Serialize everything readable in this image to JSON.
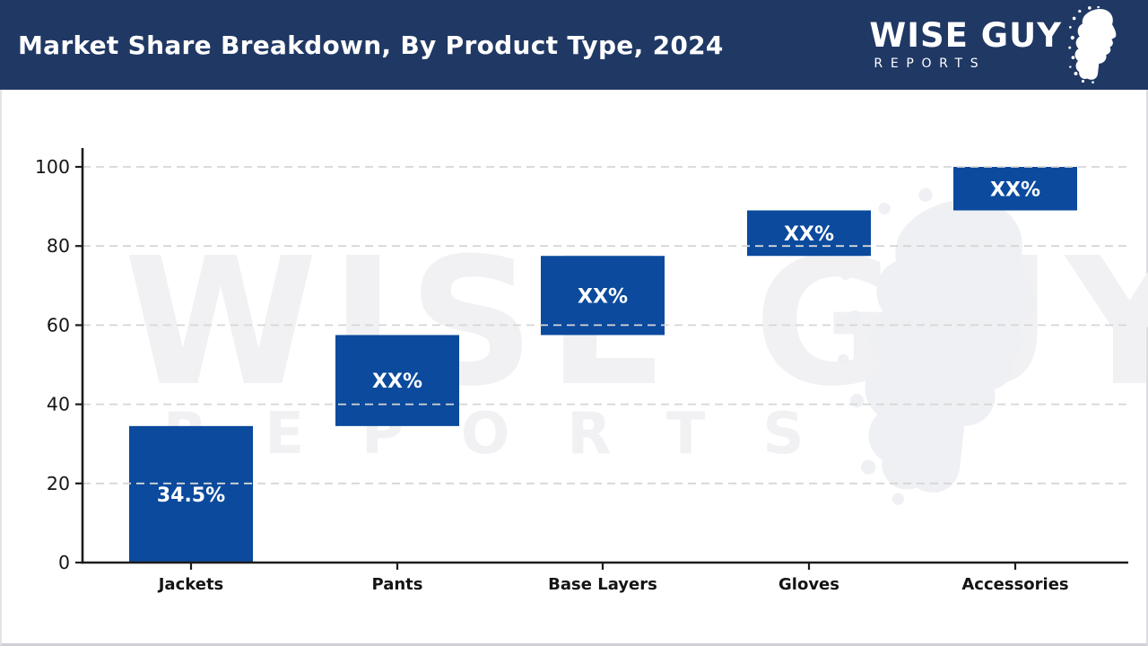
{
  "header": {
    "title": "Market Share Breakdown, By Product Type, 2024",
    "brand": {
      "line1": "WISE GUY",
      "line2": "REPORTS"
    }
  },
  "watermark": {
    "line1": "WISE GUY",
    "line2": "REPORTS"
  },
  "chart_data": {
    "type": "bar",
    "subtype": "waterfall",
    "title": "Market Share Breakdown, By Product Type, 2024",
    "categories": [
      "Jackets",
      "Pants",
      "Base Layers",
      "Gloves",
      "Accessories"
    ],
    "segments": [
      {
        "category": "Jackets",
        "start": 0,
        "end": 34.5,
        "label": "34.5%"
      },
      {
        "category": "Pants",
        "start": 34.5,
        "end": 57.5,
        "label": "XX%"
      },
      {
        "category": "Base Layers",
        "start": 57.5,
        "end": 77.5,
        "label": "XX%"
      },
      {
        "category": "Gloves",
        "start": 77.5,
        "end": 89,
        "label": "XX%"
      },
      {
        "category": "Accessories",
        "start": 89,
        "end": 100,
        "label": "XX%"
      }
    ],
    "xlabel": "",
    "ylabel": "",
    "ylim": [
      0,
      105
    ],
    "yticks": [
      0,
      20,
      40,
      60,
      80,
      100
    ],
    "grid": {
      "horizontal": true,
      "style": "dashed",
      "over_bars": true
    },
    "legend": "none",
    "colors": {
      "bar": "#0b4a9d",
      "bar_label": "#ffffff",
      "axis": "#1c1c1c",
      "tick_label": "#141414",
      "gridline": "#d6d6d6",
      "header_bg": "#203864",
      "watermark": "#f1f1f4"
    }
  }
}
